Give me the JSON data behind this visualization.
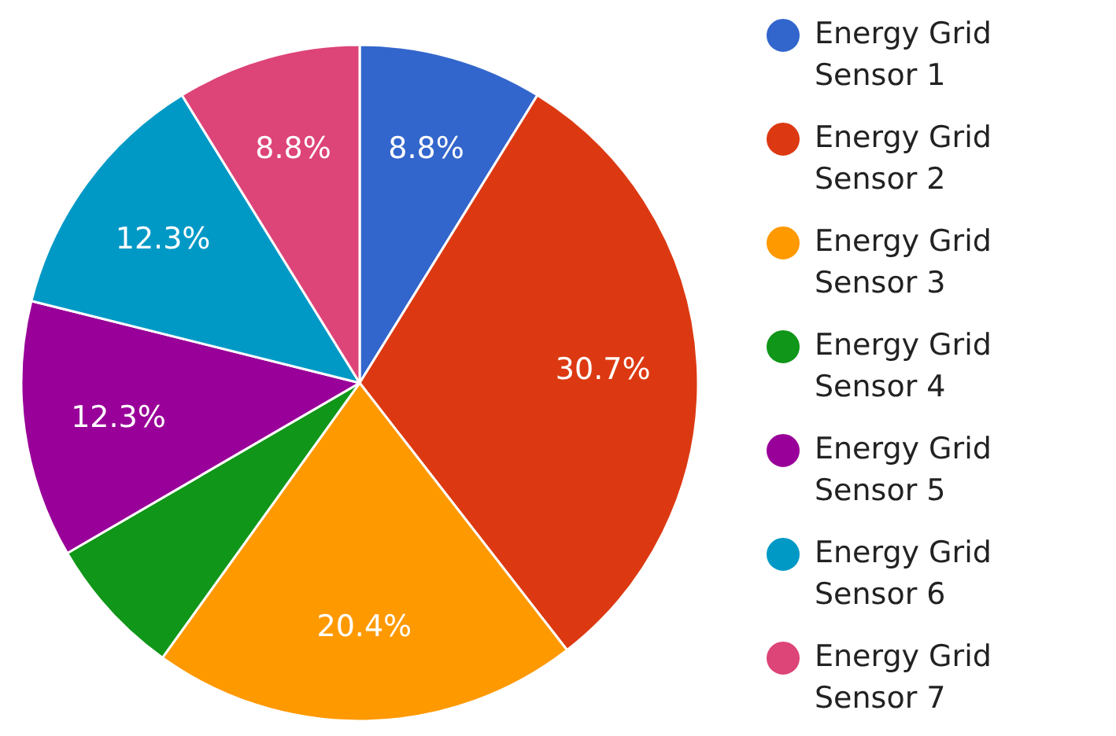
{
  "chart_data": {
    "type": "pie",
    "categories": [
      "Energy Grid Sensor 1",
      "Energy Grid Sensor 2",
      "Energy Grid Sensor 3",
      "Energy Grid Sensor 4",
      "Energy Grid Sensor 5",
      "Energy Grid Sensor 6",
      "Energy Grid Sensor 7"
    ],
    "values": [
      8.8,
      30.7,
      20.4,
      6.7,
      12.3,
      12.3,
      8.8
    ],
    "value_labels": [
      "8.8%",
      "30.7%",
      "20.4%",
      null,
      "12.3%",
      "12.3%",
      "8.8%"
    ],
    "colors": [
      "#3366cc",
      "#dc3912",
      "#ff9900",
      "#109618",
      "#990099",
      "#0099c6",
      "#dd4477"
    ],
    "legend": "right"
  }
}
